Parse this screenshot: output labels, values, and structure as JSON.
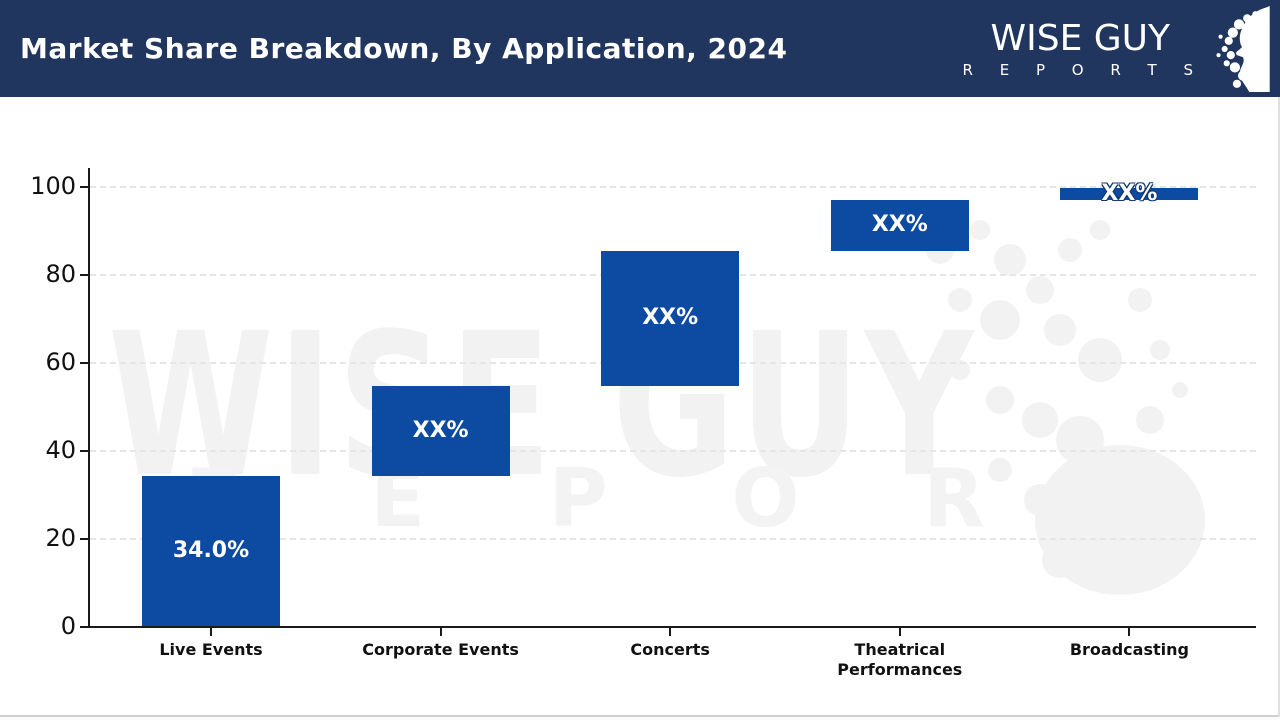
{
  "header": {
    "title": "Market Share Breakdown, By Application, 2024",
    "bg_color": "#21365e",
    "logo": {
      "line1": "WISE GUY",
      "line2": "R E P O R T S"
    }
  },
  "watermark": {
    "line1": "WISE GUY",
    "line2": "R E P O R T S"
  },
  "chart_data": {
    "type": "bar",
    "subtype": "floating-waterfall",
    "title": "Market Share Breakdown, By Application, 2024",
    "categories": [
      "Live Events",
      "Corporate Events",
      "Concerts",
      "Theatrical Performances",
      "Broadcasting"
    ],
    "segments": [
      {
        "category": "Live Events",
        "start": 0,
        "end": 34.0,
        "label": "34.0%"
      },
      {
        "category": "Corporate Events",
        "start": 34.0,
        "end": 54.6,
        "label": "XX%"
      },
      {
        "category": "Concerts",
        "start": 54.6,
        "end": 85.3,
        "label": "XX%"
      },
      {
        "category": "Theatrical Performances",
        "start": 85.3,
        "end": 96.8,
        "label": "XX%"
      },
      {
        "category": "Broadcasting",
        "start": 96.8,
        "end": 99.6,
        "label": "XX%"
      }
    ],
    "yticks": [
      0,
      20,
      40,
      60,
      80,
      100
    ],
    "ylim": [
      0,
      104
    ],
    "xlabel": "",
    "ylabel": "",
    "bar_color": "#0d4aa1",
    "label_color": "#ffffff",
    "grid": "horizontal-dashed",
    "legend": "none"
  }
}
